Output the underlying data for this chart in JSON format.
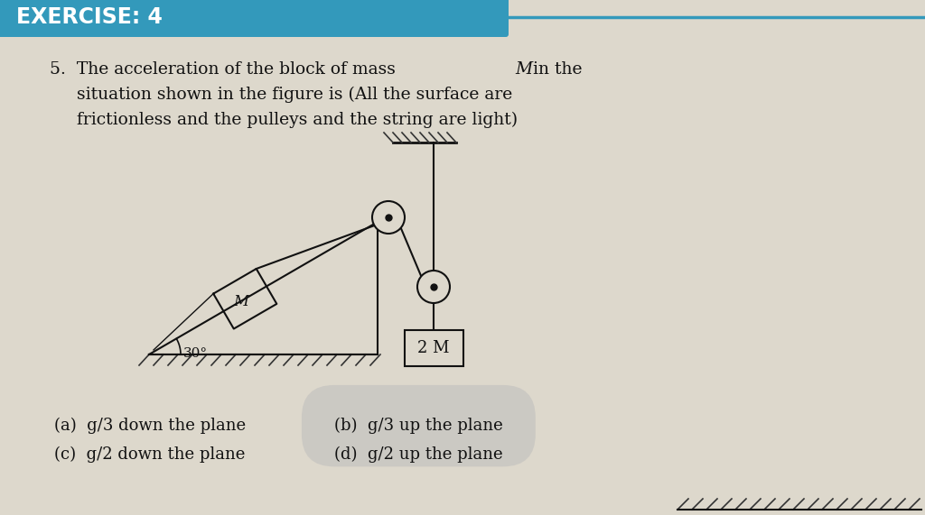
{
  "background_color": "#ddd8cc",
  "header_color": "#3399bb",
  "header_text": "EXERCISE: 4",
  "header_text_color": "#ffffff",
  "text_color": "#111111",
  "diagram_line_color": "#111111",
  "hatch_color": "#333333",
  "pulley_fill": "#ddd8cc",
  "angle_label": "30°",
  "mass_label_M": "M",
  "mass_label_2M": "2 M",
  "q_line1a": "5.  The acceleration of the block of mass ",
  "q_line1b": "M",
  "q_line1c": " in the",
  "q_line2": "situation shown in the figure is (All the surface are",
  "q_line3": "frictionless and the pulleys and the string are light)",
  "opt_a": "(a)  g/3 down the plane",
  "opt_b": "(b)  g/3 up the plane",
  "opt_c": "(c)  g/2 down the plane",
  "opt_d": "(d)  g/2 up the plane"
}
